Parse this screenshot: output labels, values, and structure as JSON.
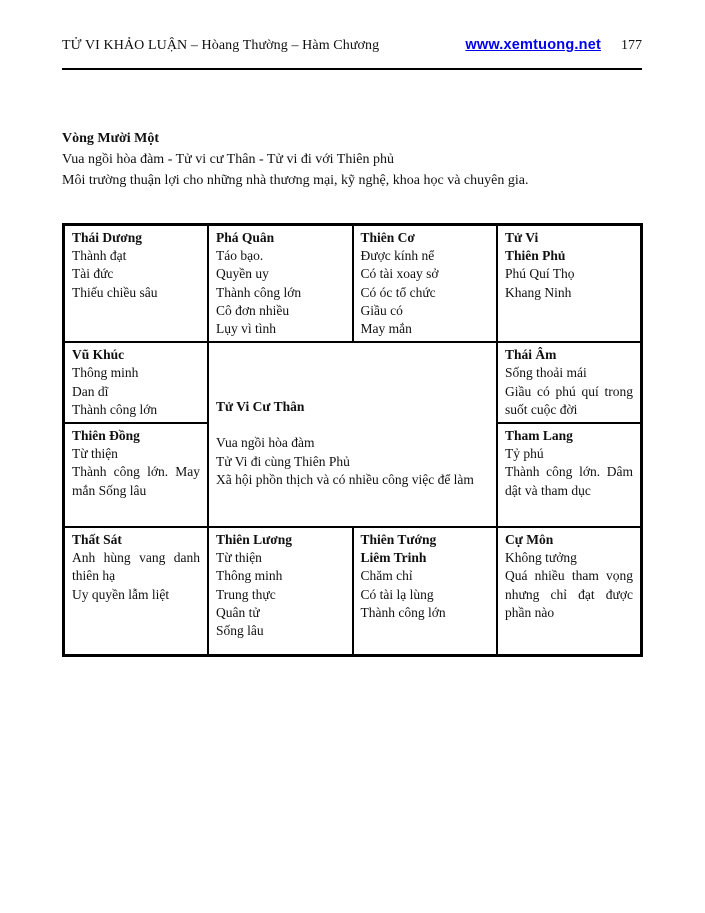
{
  "header": {
    "title": "TỬ VI KHẢO LUẬN – Hòang Thường – Hàm Chương",
    "link": "www.xemtuong.net",
    "link_color": "#0000ee",
    "page_number": "177"
  },
  "intro": {
    "heading": "Vòng Mười Một",
    "line1": "Vua ngồi hòa đàm - Tử vi cư Thân - Tử vi đi với Thiên phủ",
    "line2": "Môi trường thuận lợi cho những nhà thương mại, kỹ nghệ, khoa học và chuyên gia."
  },
  "table": {
    "cells": {
      "thai_duong": {
        "titles": [
          "Thái Dương"
        ],
        "lines": [
          "Thành đạt",
          "Tài đức",
          "Thiếu chiều sâu"
        ]
      },
      "pha_quan": {
        "titles": [
          "Phá Quân"
        ],
        "lines": [
          "Táo bạo.",
          "Quyền uy",
          "Thành công lớn",
          "Cô đơn nhiều",
          "Lụy vì tình"
        ]
      },
      "thien_co": {
        "titles": [
          "Thiên Cơ"
        ],
        "lines": [
          "Được kính nể",
          "Có tài xoay sở",
          "Có óc tổ chức",
          "Giầu có",
          "May mắn"
        ]
      },
      "tu_vi": {
        "titles": [
          "Tử Vi",
          "Thiên Phủ"
        ],
        "lines": [
          "Phú Quí Thọ",
          "Khang Ninh"
        ]
      },
      "vu_khuc": {
        "titles": [
          "Vũ Khúc"
        ],
        "lines": [
          "Thông minh",
          "Dan dĩ",
          "Thành công lớn"
        ]
      },
      "thien_dong": {
        "titles": [
          "Thiên Đồng"
        ],
        "lines": [
          "Từ thiện",
          "Thành công lớn. May mắn Sống lâu"
        ]
      },
      "center": {
        "titles": [
          "Tử Vi Cư Thân"
        ],
        "lines": [
          "Vua ngồi hòa đàm",
          "Tử Vi đi cùng Thiên Phủ",
          "Xã hội phồn thịch và có nhiều công việc để làm"
        ]
      },
      "thai_am": {
        "titles": [
          "Thái Âm"
        ],
        "lines": [
          "Sống thoải mái",
          "Giầu có phú quí trong suốt cuộc đời"
        ]
      },
      "tham_lang": {
        "titles": [
          "Tham Lang"
        ],
        "lines": [
          "Tỷ phú",
          "Thành công lớn. Dâm dật và tham dục"
        ]
      },
      "that_sat": {
        "titles": [
          "Thất Sát"
        ],
        "lines": [
          "Anh hùng vang danh thiên hạ",
          "Uy quyền lẫm liệt"
        ]
      },
      "thien_luong": {
        "titles": [
          "Thiên Lương"
        ],
        "lines": [
          "Từ thiện",
          "Thông minh",
          "Trung thực",
          "Quân tử",
          "Sống lâu"
        ]
      },
      "thien_tuong": {
        "titles": [
          "Thiên Tướng",
          "Liêm Trinh"
        ],
        "lines": [
          "Chăm chỉ",
          "Có tài lạ lùng",
          "Thành công lớn"
        ]
      },
      "cu_mon": {
        "titles": [
          "Cự Môn"
        ],
        "lines": [
          "Không tưởng",
          "Quá nhiều tham vọng nhưng chỉ đạt được phần nào"
        ]
      }
    }
  }
}
